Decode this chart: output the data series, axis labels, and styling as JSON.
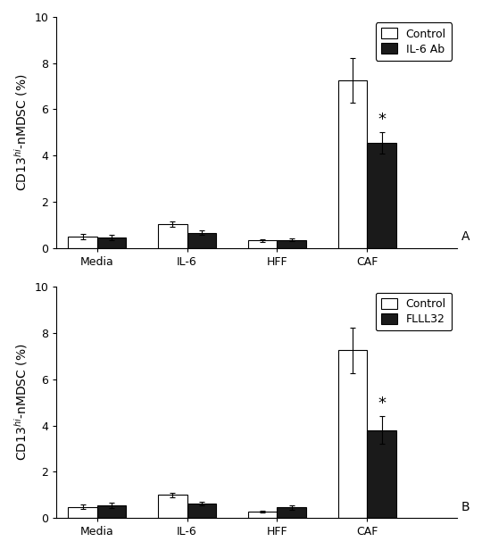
{
  "panel_A": {
    "categories": [
      "Media",
      "IL-6",
      "HFF",
      "CAF"
    ],
    "control_values": [
      0.5,
      1.02,
      0.32,
      7.25
    ],
    "control_errors": [
      0.12,
      0.12,
      0.07,
      0.95
    ],
    "treatment_values": [
      0.45,
      0.65,
      0.35,
      4.55
    ],
    "treatment_errors": [
      0.1,
      0.1,
      0.07,
      0.45
    ],
    "treatment_label": "IL-6 Ab",
    "panel_label": "A",
    "significance": [
      false,
      false,
      false,
      true
    ]
  },
  "panel_B": {
    "categories": [
      "Media",
      "IL-6",
      "HFF",
      "CAF"
    ],
    "control_values": [
      0.48,
      1.0,
      0.28,
      7.25
    ],
    "control_errors": [
      0.1,
      0.1,
      0.05,
      1.0
    ],
    "treatment_values": [
      0.55,
      0.62,
      0.45,
      3.8
    ],
    "treatment_errors": [
      0.12,
      0.08,
      0.1,
      0.6
    ],
    "treatment_label": "FLLL32",
    "panel_label": "B",
    "significance": [
      false,
      false,
      false,
      true
    ]
  },
  "ylabel": "CD13$^{hi}$-nMDSC (%)",
  "ylim": [
    0,
    10
  ],
  "yticks": [
    0,
    2,
    4,
    6,
    8,
    10
  ],
  "control_color": "#ffffff",
  "treatment_color": "#1a1a1a",
  "bar_edge_color": "#000000",
  "bar_width": 0.32,
  "group_positions": [
    1,
    2,
    3,
    4
  ],
  "legend_control_label": "Control",
  "background_color": "#ffffff",
  "fontsize_label": 10,
  "fontsize_tick": 9,
  "fontsize_legend": 9,
  "fontsize_panel": 10
}
